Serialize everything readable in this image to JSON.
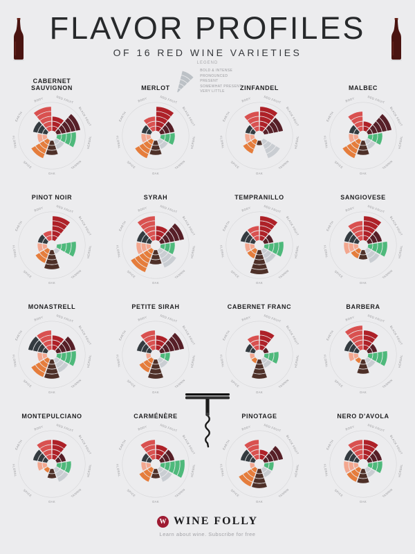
{
  "header": {
    "title": "FLAVOR PROFILES",
    "subtitle": "OF 16 RED WINE VARIETIES"
  },
  "legend": {
    "title": "LEGEND",
    "levels": [
      "BOLD & INTENSE",
      "PRONOUNCED",
      "PRESENT",
      "SOMEWHAT PRESENT",
      "VERY LITTLE"
    ]
  },
  "footer": {
    "brand": "WINE FOLLY",
    "logo_letter": "W",
    "logo_color": "#9e1b32",
    "tagline": "Learn about wine. Subscribe for free"
  },
  "chart_data": {
    "type": "polar-bar",
    "value_range": [
      0,
      5
    ],
    "intensity_levels": [
      "VERY LITTLE",
      "SOMEWHAT PRESENT",
      "PRESENT",
      "PRONOUNCED",
      "BOLD & INTENSE"
    ],
    "axes": [
      "BODY",
      "RED FRUIT",
      "BLACK FRUIT",
      "HERBAL",
      "TANNIN",
      "OAK",
      "SPICE",
      "FLORAL",
      "EARTH"
    ],
    "axis_colors": [
      "#d95150",
      "#ae2128",
      "#571f27",
      "#4eb97b",
      "#c9cdd2",
      "#4e3028",
      "#e57d3c",
      "#f3a78f",
      "#343b40"
    ],
    "wines": [
      {
        "name": "CABERNET SAUVIGNON",
        "values": [
          5,
          3,
          5,
          4,
          2,
          3,
          4,
          2,
          3
        ]
      },
      {
        "name": "MERLOT",
        "values": [
          3,
          5,
          3,
          3,
          2,
          3,
          4,
          2,
          2
        ]
      },
      {
        "name": "ZINFANDEL",
        "values": [
          4,
          5,
          4,
          0,
          4,
          1,
          3,
          2,
          2
        ]
      },
      {
        "name": "MALBEC",
        "values": [
          4,
          2,
          5,
          3,
          2,
          3,
          4,
          2,
          2
        ]
      },
      {
        "name": "PINOT NOIR",
        "values": [
          2,
          5,
          0,
          4,
          1,
          4,
          3,
          2,
          2
        ]
      },
      {
        "name": "SYRAH",
        "values": [
          5,
          3,
          5,
          3,
          4,
          3,
          5,
          3,
          3
        ]
      },
      {
        "name": "TEMPRANILLO",
        "values": [
          3,
          5,
          2,
          4,
          3,
          5,
          2,
          2,
          3
        ]
      },
      {
        "name": "SANGIOVESE",
        "values": [
          4,
          5,
          3,
          4,
          3,
          2,
          2,
          3,
          3
        ]
      },
      {
        "name": "MONASTRELL",
        "values": [
          4,
          3,
          4,
          4,
          3,
          4,
          4,
          2,
          4
        ]
      },
      {
        "name": "PETITE SIRAH",
        "values": [
          4,
          3,
          5,
          2,
          2,
          4,
          3,
          1,
          3
        ]
      },
      {
        "name": "CABERNET FRANC",
        "values": [
          3,
          4,
          1,
          3,
          2,
          4,
          1,
          1,
          2
        ]
      },
      {
        "name": "BARBERA",
        "values": [
          5,
          4,
          2,
          4,
          2,
          3,
          1,
          2,
          3
        ]
      },
      {
        "name": "MONTEPULCIANO",
        "values": [
          4,
          4,
          2,
          3,
          3,
          2,
          1,
          2,
          3
        ]
      },
      {
        "name": "CARMÉNÈRE",
        "values": [
          4,
          3,
          3,
          5,
          3,
          2,
          3,
          2,
          2
        ]
      },
      {
        "name": "PINOTAGE",
        "values": [
          4,
          2,
          4,
          2,
          2,
          4,
          4,
          1,
          3
        ]
      },
      {
        "name": "NERO D'AVOLA",
        "values": [
          4,
          4,
          3,
          3,
          2,
          3,
          3,
          3,
          3
        ]
      }
    ]
  }
}
